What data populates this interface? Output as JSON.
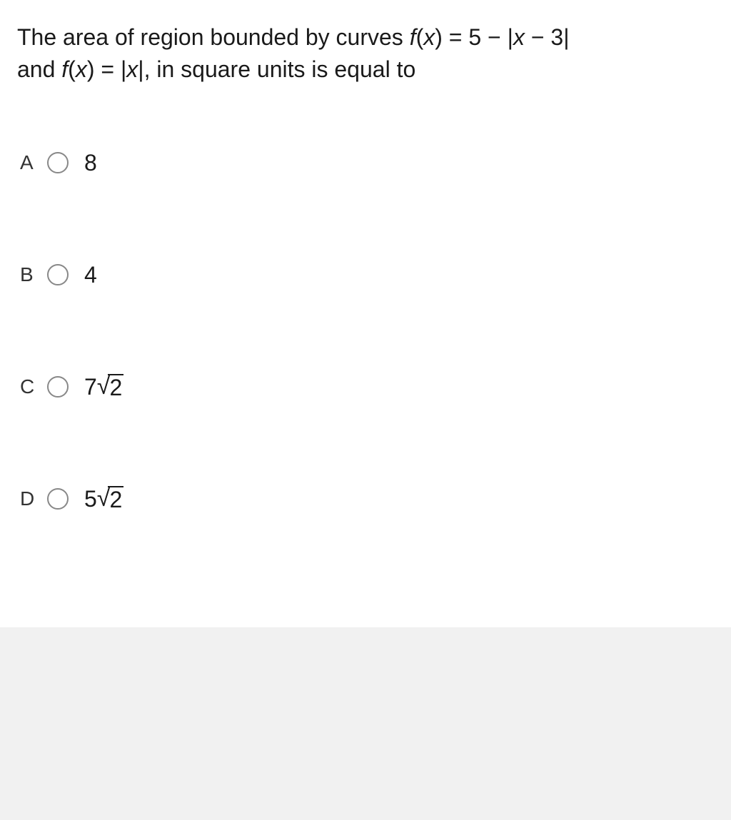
{
  "question": {
    "line1_prefix": "The area of region bounded by curves ",
    "line1_func1_f": "f",
    "line1_func1_x": "(x)",
    "line1_func1_eq": " = 5 − |",
    "line1_func1_xvar": "x",
    "line1_func1_suffix": " − 3|",
    "line2_prefix": "and ",
    "line2_func2_f": "f",
    "line2_func2_x": "(x)",
    "line2_func2_eq": " = |",
    "line2_func2_xvar": "x",
    "line2_func2_suffix": "|, in square units is equal to"
  },
  "options": {
    "a": {
      "letter": "A",
      "value": "8"
    },
    "b": {
      "letter": "B",
      "value": "4"
    },
    "c": {
      "letter": "C",
      "coeff": "7",
      "radicand": "2"
    },
    "d": {
      "letter": "D",
      "coeff": "5",
      "radicand": "2"
    }
  },
  "colors": {
    "text": "#1a1a1a",
    "letter": "#333333",
    "radio_border": "#888888",
    "background": "#ffffff",
    "bottom_bg": "#f1f1f1"
  },
  "typography": {
    "question_fontsize": 32,
    "option_letter_fontsize": 28,
    "option_value_fontsize": 32
  }
}
